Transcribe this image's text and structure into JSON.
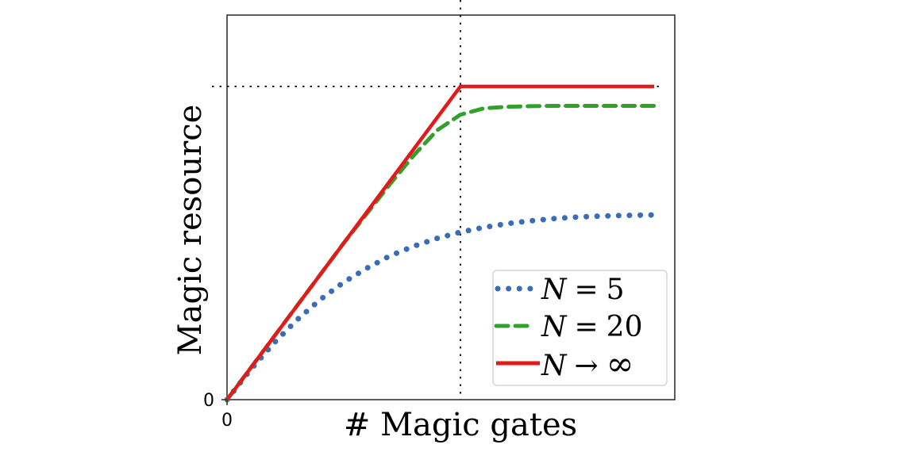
{
  "chart_data": {
    "type": "line",
    "title": "",
    "xlabel": "# Magic gates",
    "ylabel": "Magic resource",
    "xlim": [
      0,
      1.84
    ],
    "ylim": [
      0,
      1.3
    ],
    "x_ticks": [
      {
        "value": 0,
        "label": "0"
      }
    ],
    "y_ticks": [
      {
        "value": 0,
        "label": "0"
      }
    ],
    "grid": false,
    "legend_position": "lower right",
    "reference_lines": [
      {
        "orientation": "vertical",
        "value": 1.0,
        "style": "dotted",
        "color": "#222222"
      },
      {
        "orientation": "horizontal",
        "value": 1.0,
        "style": "dotted",
        "color": "#222222"
      }
    ],
    "x": [
      0,
      0.1,
      0.2,
      0.3,
      0.4,
      0.5,
      0.6,
      0.7,
      0.8,
      0.9,
      1.0,
      1.1,
      1.2,
      1.3,
      1.4,
      1.5,
      1.6,
      1.7,
      1.83
    ],
    "series": [
      {
        "name": "N = 5",
        "legend_label": "N = 5",
        "style": "dotted",
        "color": "#3a6db5",
        "values": [
          0,
          0.095,
          0.18,
          0.255,
          0.32,
          0.375,
          0.42,
          0.46,
          0.49,
          0.515,
          0.535,
          0.55,
          0.562,
          0.571,
          0.578,
          0.583,
          0.586,
          0.588,
          0.59
        ]
      },
      {
        "name": "N = 20",
        "legend_label": "N = 20",
        "style": "dashed",
        "color": "#33a02c",
        "values": [
          0,
          0.1,
          0.2,
          0.3,
          0.4,
          0.5,
          0.595,
          0.69,
          0.78,
          0.86,
          0.91,
          0.93,
          0.935,
          0.937,
          0.938,
          0.938,
          0.938,
          0.938,
          0.938
        ]
      },
      {
        "name": "N → ∞",
        "legend_label": "N → ∞",
        "style": "solid",
        "color": "#e31a1c",
        "values": [
          0,
          0.1,
          0.2,
          0.3,
          0.4,
          0.5,
          0.6,
          0.7,
          0.8,
          0.9,
          1.0,
          1.0,
          1.0,
          1.0,
          1.0,
          1.0,
          1.0,
          1.0,
          1.0
        ]
      }
    ]
  },
  "legend": {
    "items": [
      {
        "var": "N",
        "op": "=",
        "val": "5"
      },
      {
        "var": "N",
        "op": "=",
        "val": "20"
      },
      {
        "var": "N",
        "op": "→",
        "val": "∞"
      }
    ]
  },
  "axes": {
    "x_label": "# Magic gates",
    "y_label": "Magic resource",
    "x_tick_zero": "0",
    "y_tick_zero": "0"
  }
}
